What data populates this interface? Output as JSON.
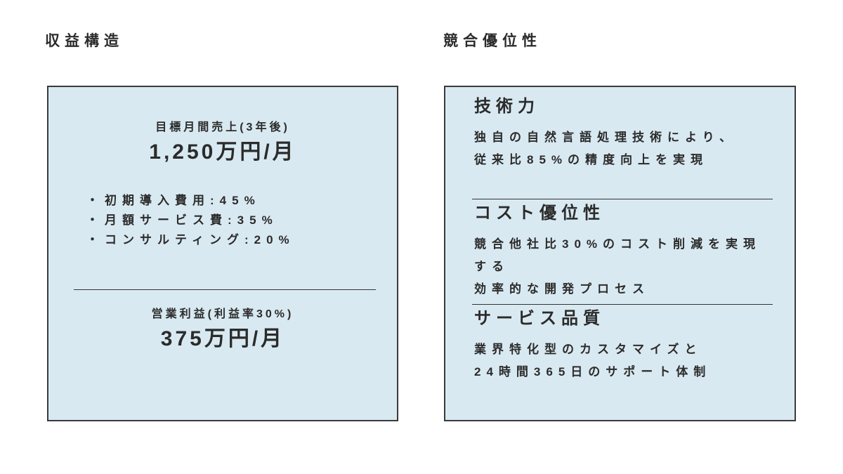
{
  "colors": {
    "background": "#ffffff",
    "card_background": "#d9e9f1",
    "card_border": "#3a3a3a",
    "divider": "#333333",
    "text": "#2b2b2b"
  },
  "left_panel": {
    "title": "収益構造",
    "bullet_char": "・",
    "revenue": {
      "label": "目標月間売上(3年後)",
      "value": "1,250万円/月"
    },
    "breakdown": [
      "初期導入費用:45%",
      "月額サービス費:35%",
      "コンサルティング:20%"
    ],
    "profit": {
      "label": "営業利益(利益率30%)",
      "value": "375万円/月"
    }
  },
  "right_panel": {
    "title": "競合優位性",
    "sections": [
      {
        "heading": "技術力",
        "line1": "独自の自然言語処理技術により、",
        "line2": "従来比85%の精度向上を実現"
      },
      {
        "heading": "コスト優位性",
        "line1": "競合他社比30%のコスト削減を実現する",
        "line2": "効率的な開発プロセス"
      },
      {
        "heading": "サービス品質",
        "line1": "業界特化型のカスタマイズと",
        "line2": "24時間365日のサポート体制"
      }
    ]
  }
}
